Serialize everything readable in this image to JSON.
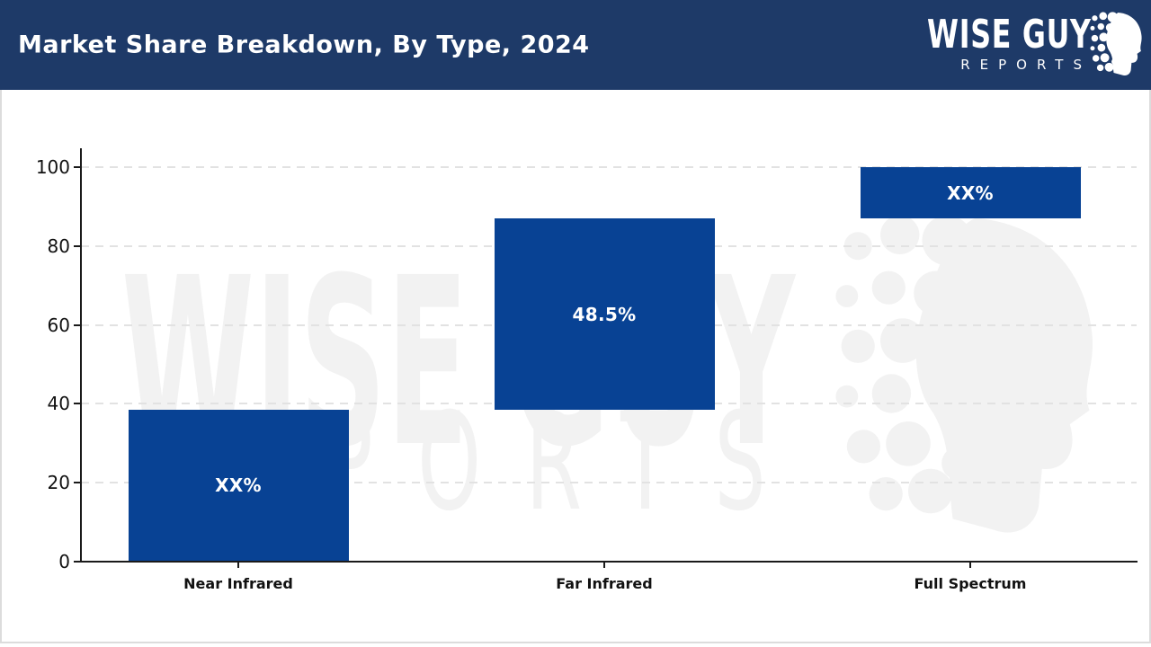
{
  "header": {
    "title": "Market Share Breakdown, By Type, 2024",
    "logo": {
      "line1": "WISE GUY",
      "line2": "REPORTS"
    }
  },
  "watermark": {
    "line1": "WISE GUY",
    "line2": "REPORTS"
  },
  "chart_data": {
    "type": "bar",
    "subtype": "stacked-waterfall-segments",
    "title": "Market Share Breakdown, By Type, 2024",
    "categories": [
      "Near Infrared",
      "Far Infrared",
      "Full Spectrum"
    ],
    "segments": [
      {
        "category": "Near Infrared",
        "start": 0,
        "end": 38.5,
        "label": "XX%"
      },
      {
        "category": "Far Infrared",
        "start": 38.5,
        "end": 87,
        "label": "48.5%"
      },
      {
        "category": "Full Spectrum",
        "start": 87,
        "end": 100,
        "label": "XX%"
      }
    ],
    "xlabel": "",
    "ylabel": "",
    "ylim": [
      0,
      105
    ],
    "yticks": [
      0,
      20,
      40,
      60,
      80,
      100
    ],
    "grid": "horizontal-dashed",
    "legend": "none",
    "bar_color": "#084294",
    "bar_label_color": "#ffffff"
  },
  "colors": {
    "header_bg": "#1e3a68",
    "canvas_bg": "#ffffff",
    "bar": "#084294",
    "gridline": "#e2e2e2",
    "axis": "#1a1a1a",
    "watermark": "#f2f2f2",
    "border": "#dcdcdc"
  }
}
